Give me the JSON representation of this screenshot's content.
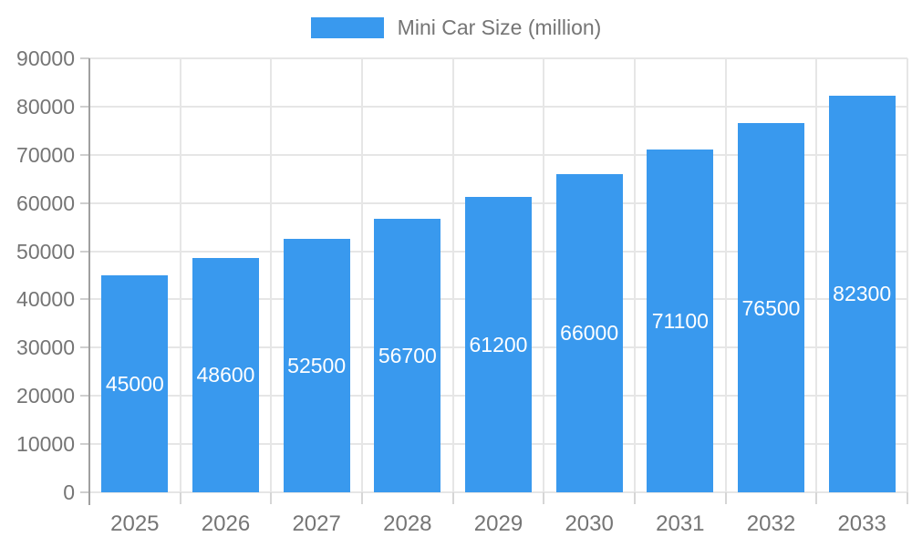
{
  "legend": {
    "label": "Mini Car Size (million)"
  },
  "colors": {
    "bar": "#3999ee",
    "bar_label_text": "#ffffff",
    "axis_text": "#757575",
    "grid_line": "#e6e6e6",
    "axis_line": "#a0a0a0",
    "background": "#ffffff"
  },
  "chart_data": {
    "type": "bar",
    "title": "Mini Car Size (million)",
    "categories": [
      "2025",
      "2026",
      "2027",
      "2028",
      "2029",
      "2030",
      "2031",
      "2032",
      "2033"
    ],
    "values": [
      45000,
      48600,
      52500,
      56700,
      61200,
      66000,
      71100,
      76500,
      82300
    ],
    "series_name": "Mini Car Size (million)",
    "xlabel": "",
    "ylabel": "",
    "ylim": [
      0,
      90000
    ],
    "ytick_step": 10000,
    "ytick_labels": [
      "0",
      "10000",
      "20000",
      "30000",
      "40000",
      "50000",
      "60000",
      "70000",
      "80000",
      "90000"
    ],
    "grid": true,
    "legend_position": "top-center",
    "bar_value_labels_visible": true
  }
}
